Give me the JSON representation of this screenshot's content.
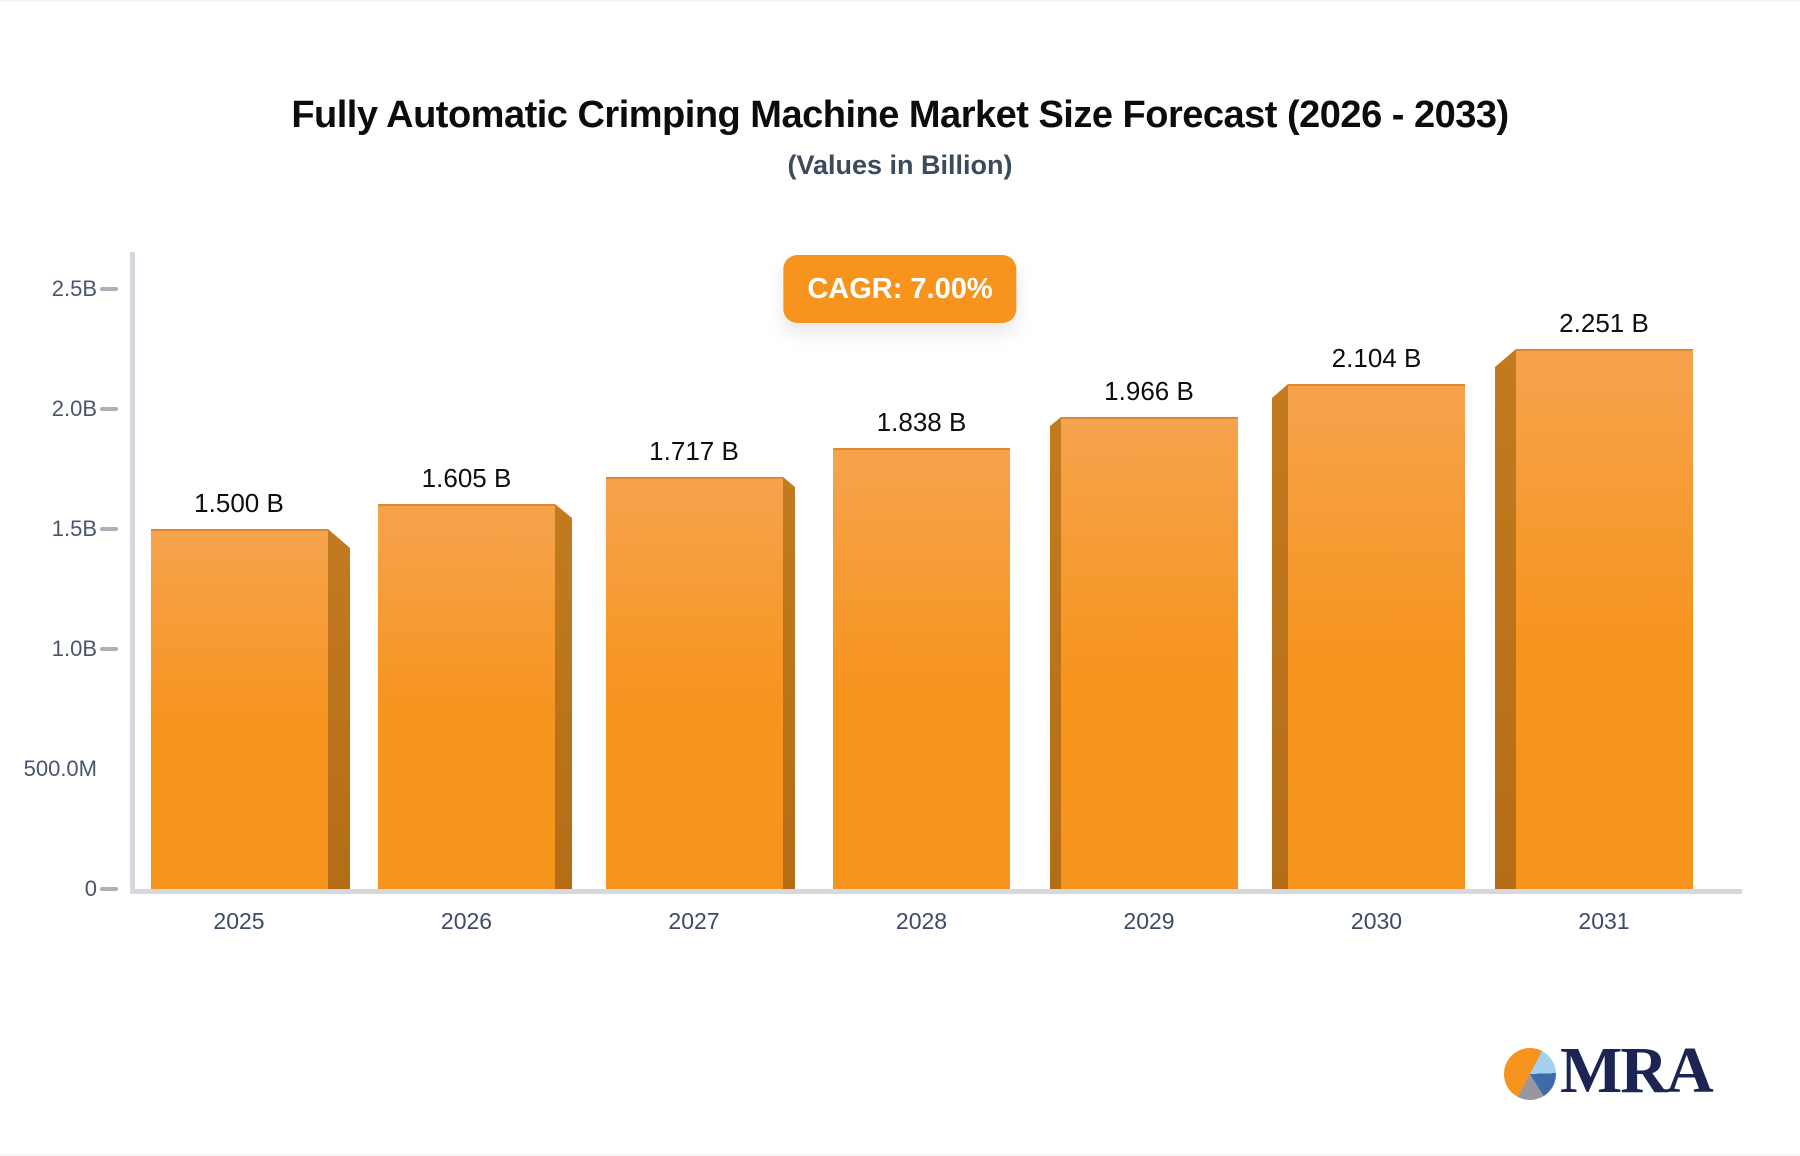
{
  "page": {
    "title": "Fully Automatic Crimping Machine Market Size Forecast (2026 - 2033)",
    "subtitle": "(Values in Billion)"
  },
  "cagr_badge": {
    "label": "CAGR: 7.00%",
    "bg_color": "#f7941e",
    "text_color": "#ffffff"
  },
  "watermark": {
    "brand_text": "MRA",
    "icon": "pie-chart-icon",
    "text_color": "#1c2454",
    "pie_colors": {
      "orange": "#f7941e",
      "light_blue": "#a6d0f0",
      "blue": "#3d6da8",
      "gray": "#97979d"
    }
  },
  "chart_data": {
    "type": "bar",
    "title": "Fully Automatic Crimping Machine Market Size Forecast (2026 - 2033)",
    "subtitle": "(Values in Billion)",
    "cagr": "7.00%",
    "unit": "B",
    "categories": [
      "2025",
      "2026",
      "2027",
      "2028",
      "2029",
      "2030",
      "2031"
    ],
    "values": [
      1.5,
      1.605,
      1.717,
      1.838,
      1.966,
      2.104,
      2.251
    ],
    "bar_labels": [
      "1.500 B",
      "1.605 B",
      "1.717 B",
      "1.838 B",
      "1.966 B",
      "2.104 B",
      "2.251 B"
    ],
    "y_ticks": [
      {
        "label": "2.5B",
        "value": 2.5,
        "has_tick_mark": true
      },
      {
        "label": "2.0B",
        "value": 2.0,
        "has_tick_mark": true
      },
      {
        "label": "1.5B",
        "value": 1.5,
        "has_tick_mark": true
      },
      {
        "label": "1.0B",
        "value": 1.0,
        "has_tick_mark": true
      },
      {
        "label": "500.0M",
        "value": 0.5,
        "has_tick_mark": false
      },
      {
        "label": "0",
        "value": 0,
        "has_tick_mark": true
      }
    ],
    "ylim": [
      0,
      2.5
    ],
    "xlabel": "",
    "ylabel": "",
    "grid": false,
    "legend": false,
    "bar_color": "#f7941e",
    "bar_color_light": "#f5a34d",
    "bar_side_color": "#b36d16",
    "bar_side_color_light": "#c37b20",
    "style": "3d-bevel"
  }
}
